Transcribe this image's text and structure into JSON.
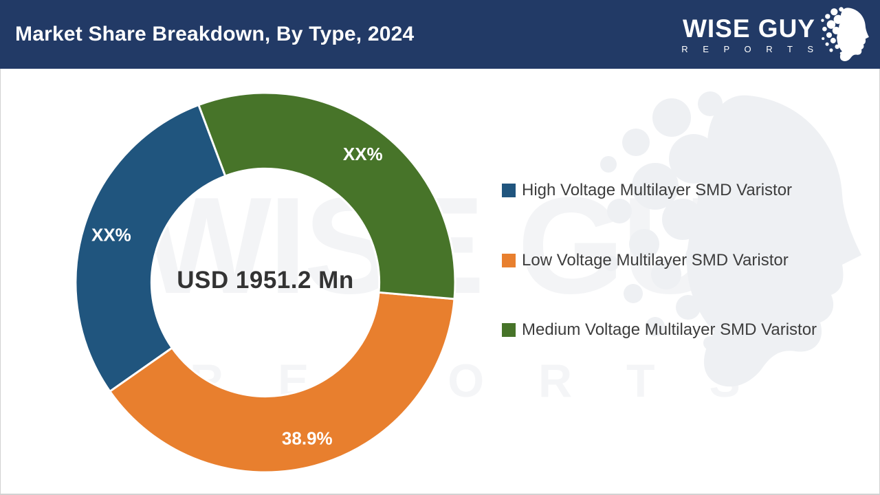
{
  "header": {
    "title": "Market Share Breakdown, By Type, 2024",
    "logo": {
      "name_line": "WISE GUY",
      "sub_line": "R E P O R T S"
    }
  },
  "chart_data": {
    "type": "donut",
    "title": "Market Share Breakdown, By Type, 2024",
    "center_label": "USD 1951.2 Mn",
    "start_angle_deg": 110.6,
    "direction": "counterclockwise",
    "inner_radius_ratio": 0.6,
    "label_radius_ratio": 0.85,
    "legend_position": "right",
    "slices": [
      {
        "name": "High Voltage Multilayer SMD Varistor",
        "display_label": "XX%",
        "share_pct_est": 29.0,
        "color": "#20557e"
      },
      {
        "name": "Low Voltage Multilayer SMD Varistor",
        "display_label": "38.9%",
        "share_pct_est": 38.9,
        "color": "#e87f2e"
      },
      {
        "name": "Medium Voltage Multilayer SMD Varistor",
        "display_label": "XX%",
        "share_pct_est": 32.1,
        "color": "#477429"
      }
    ]
  },
  "legend": {
    "items": [
      {
        "label": "High Voltage Multilayer SMD Varistor",
        "color": "#20557e"
      },
      {
        "label": "Low Voltage Multilayer SMD Varistor",
        "color": "#e87f2e"
      },
      {
        "label": "Medium Voltage Multilayer SMD Varistor",
        "color": "#477429"
      }
    ]
  },
  "watermark": {
    "line1": "WISE GUY",
    "line2": "R E P O R T S"
  },
  "colors": {
    "header_bg": "#223a66",
    "body_border": "#d2d2d2",
    "center_text": "#333333"
  }
}
